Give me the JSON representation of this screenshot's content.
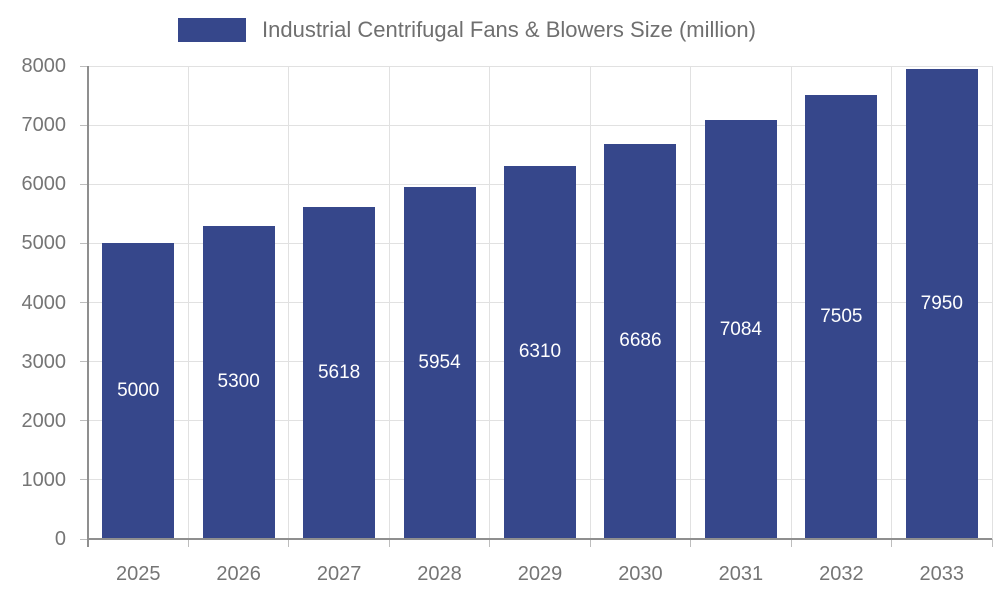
{
  "legend": {
    "title": "Industrial Centrifugal Fans & Blowers Size (million)"
  },
  "chart_data": {
    "type": "bar",
    "categories": [
      "2025",
      "2026",
      "2027",
      "2028",
      "2029",
      "2030",
      "2031",
      "2032",
      "2033"
    ],
    "values": [
      5000,
      5300,
      5618,
      5954,
      6310,
      6686,
      7084,
      7505,
      7950
    ],
    "title": "Industrial Centrifugal Fans & Blowers Size (million)",
    "xlabel": "",
    "ylabel": "",
    "ylim": [
      0,
      8000
    ],
    "ytick_step": 1000,
    "grid": true,
    "legend_position": "top",
    "value_labels": "inside-center"
  },
  "colors": {
    "bar": "#36478B",
    "gridline": "#e1e1e1",
    "axis": "#8f8f8f",
    "tick_mark": "#bdbdbd",
    "tick_text": "#757575",
    "legend_text": "#6f6f6f",
    "value_label": "#ffffff",
    "background": "#ffffff"
  }
}
